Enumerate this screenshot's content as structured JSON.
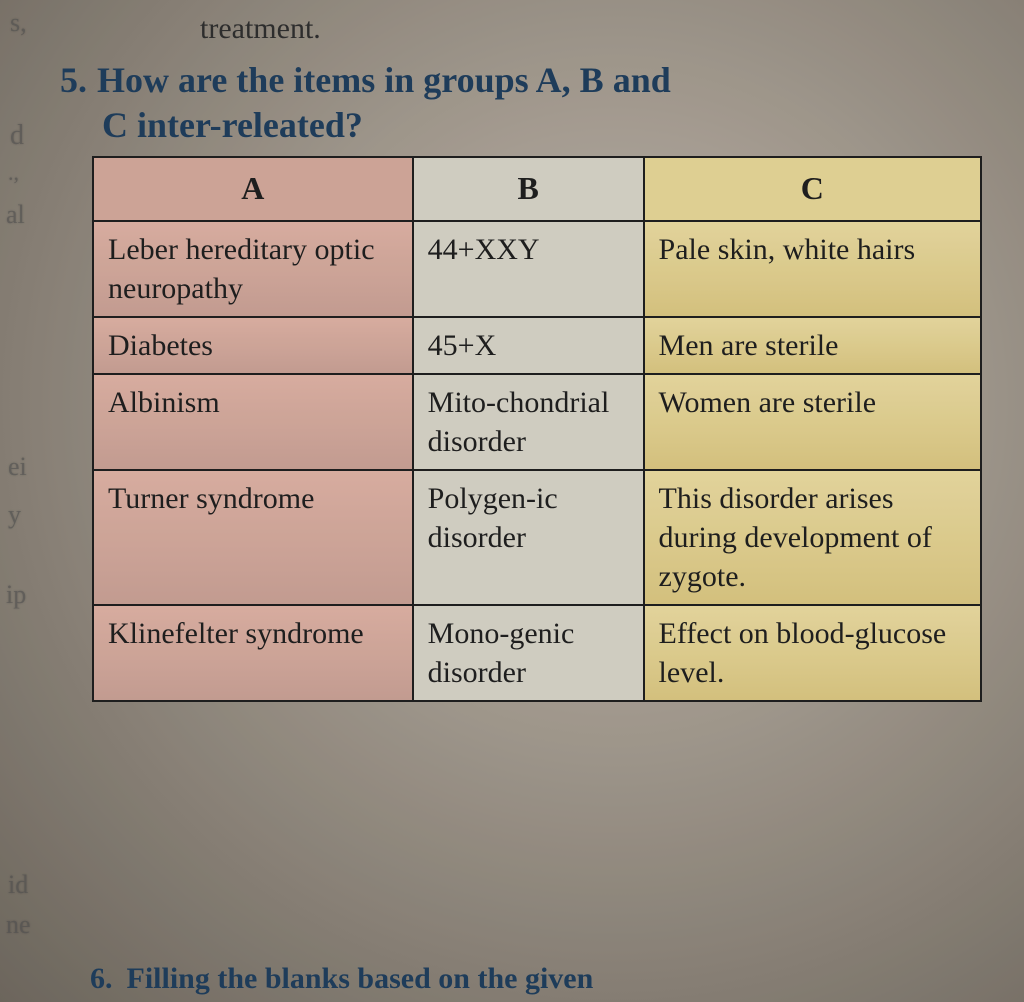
{
  "margin": {
    "mt1": "s,",
    "mt2": ".,",
    "mt3": "al",
    "mt4": "ei",
    "mt5": "y",
    "mt6": "ip",
    "mt7": "id",
    "mt8": "ne",
    "mt9": "",
    "mt10": "d"
  },
  "top_word": "treatment.",
  "question": {
    "number": "5.",
    "line1": "How are the items in groups A, B and",
    "line2": "C inter-releated?"
  },
  "table": {
    "columns": {
      "a": "A",
      "b": "B",
      "c": "C"
    },
    "column_colors": {
      "a": "#d4a89a",
      "b": "#d8d4c8",
      "c": "#e8d896"
    },
    "border_color": "#1a1a1a",
    "header_fontsize": 32,
    "cell_fontsize": 30,
    "rows": [
      {
        "a": "Leber hereditary optic neuropathy",
        "b": "44+XXY",
        "c": "Pale skin, white hairs"
      },
      {
        "a": "Diabetes",
        "b": "45+X",
        "c": "Men are sterile"
      },
      {
        "a": "Albinism",
        "b": "Mito-chondrial disorder",
        "c": "Women are sterile"
      },
      {
        "a": "Turner syndrome",
        "b": "Polygen-ic disorder",
        "c": "This disorder arises during development of zygote."
      },
      {
        "a": "Klinefelter syndrome",
        "b": "Mono-genic disorder",
        "c": "Effect on blood-glucose level."
      }
    ]
  },
  "bottom": {
    "number": "6.",
    "text": "Filling the blanks based on the given"
  },
  "colors": {
    "question_text": "#1a3a5a",
    "body_text": "#1a1a1a",
    "page_bg_light": "#c4bab0",
    "page_bg_dark": "#6d665c"
  }
}
